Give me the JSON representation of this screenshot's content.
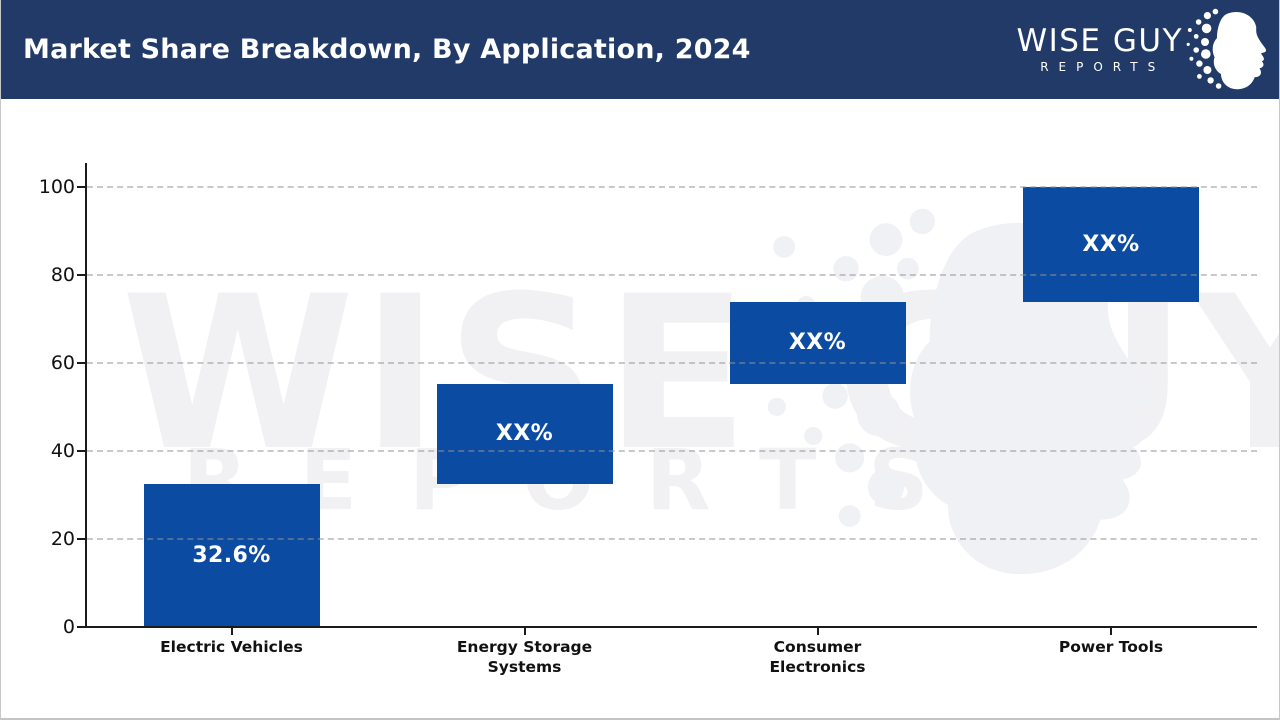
{
  "header": {
    "bg_color": "#213A68",
    "title": "Market Share Breakdown, By Application, 2024",
    "brand": {
      "line1": "WISE GUY",
      "line2": "REPORTS"
    }
  },
  "watermark": {
    "line1": "WISE GUY",
    "line2": "REPORTS"
  },
  "chart_data": {
    "type": "bar",
    "subtype": "floating_segment_waterfall",
    "title": "Market Share Breakdown, By Application, 2024",
    "categories": [
      [
        "Electric Vehicles"
      ],
      [
        "Energy Storage",
        "Systems"
      ],
      [
        "Consumer",
        "Electronics"
      ],
      [
        "Power Tools"
      ]
    ],
    "series": [
      {
        "name": "Market share (%)",
        "segments": [
          {
            "category": "Electric Vehicles",
            "start": 0,
            "end": 32.6,
            "label": "32.6%"
          },
          {
            "category": "Energy Storage Systems",
            "start": 32.6,
            "end": 55.2,
            "label": "XX%"
          },
          {
            "category": "Consumer Electronics",
            "start": 55.2,
            "end": 73.9,
            "label": "XX%"
          },
          {
            "category": "Power Tools",
            "start": 73.9,
            "end": 100,
            "label": "XX%"
          }
        ]
      }
    ],
    "ylim": [
      0,
      100
    ],
    "yticks": [
      0,
      20,
      40,
      60,
      80,
      100
    ],
    "grid": {
      "horizontal": true,
      "style": "dashed",
      "above_bars": true
    },
    "bar_color": "#0C4BA2",
    "value_label_color": "#ffffff",
    "legend": null
  }
}
